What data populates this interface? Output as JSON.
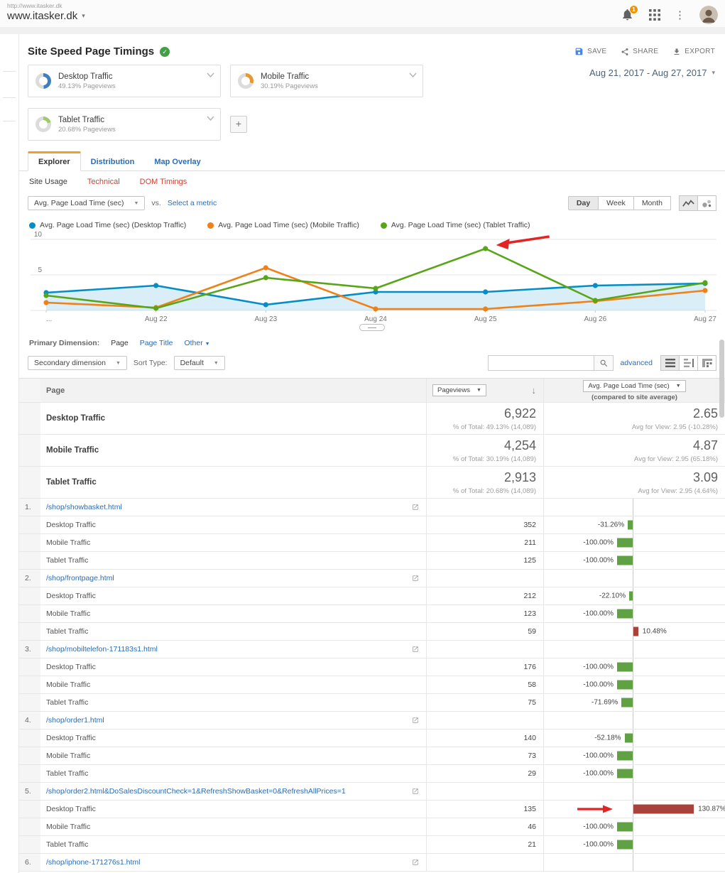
{
  "topbar": {
    "url": "http://www.itasker.dk",
    "site": "www.itasker.dk",
    "notification_count": "1"
  },
  "header": {
    "title": "Site Speed Page Timings",
    "save": "SAVE",
    "share": "SHARE",
    "export": "EXPORT"
  },
  "date_range": "Aug 21, 2017 - Aug 27, 2017",
  "segments": [
    {
      "name": "Desktop Traffic",
      "detail": "49.13% Pageviews",
      "pct": 49.13,
      "color": "#3e7fc1"
    },
    {
      "name": "Mobile Traffic",
      "detail": "30.19% Pageviews",
      "pct": 30.19,
      "color": "#e8962e"
    },
    {
      "name": "Tablet Traffic",
      "detail": "20.68% Pageviews",
      "pct": 20.68,
      "color": "#9ccb6a"
    }
  ],
  "tabs": [
    {
      "label": "Explorer"
    },
    {
      "label": "Distribution"
    },
    {
      "label": "Map Overlay"
    }
  ],
  "subtabs": [
    {
      "label": "Site Usage"
    },
    {
      "label": "Technical"
    },
    {
      "label": "DOM Timings"
    }
  ],
  "metric_bar": {
    "metric_select": "Avg. Page Load Time (sec)",
    "vs_label": "vs.",
    "select_metric": "Select a metric",
    "granularity": [
      "Day",
      "Week",
      "Month"
    ],
    "active_granularity": "Day"
  },
  "chart_data": {
    "type": "line",
    "x_labels": [
      "...",
      "Aug 22",
      "Aug 23",
      "Aug 24",
      "Aug 25",
      "Aug 26",
      "Aug 27"
    ],
    "ylim": [
      0,
      10
    ],
    "yticks": [
      5,
      10
    ],
    "grid": true,
    "legend_position": "top",
    "series": [
      {
        "name": "Avg. Page Load Time (sec) (Desktop Traffic)",
        "color": "#058dc7",
        "area": true,
        "values": [
          2.5,
          3.5,
          0.8,
          2.6,
          2.6,
          3.5,
          3.8
        ]
      },
      {
        "name": "Avg. Page Load Time (sec) (Mobile Traffic)",
        "color": "#ef8119",
        "area": false,
        "values": [
          1.1,
          0.4,
          6.0,
          0.2,
          0.2,
          1.3,
          2.8
        ]
      },
      {
        "name": "Avg. Page Load Time (sec) (Tablet Traffic)",
        "color": "#58a618",
        "area": false,
        "values": [
          2.1,
          0.3,
          4.6,
          3.1,
          8.7,
          1.4,
          3.9
        ]
      }
    ],
    "arrow_annotation": {
      "series": 2,
      "index": 4
    }
  },
  "primary_dimension": {
    "label": "Primary Dimension:",
    "active": "Page",
    "links": [
      "Page Title",
      "Other"
    ]
  },
  "toolbar": {
    "secondary_dimension": "Secondary dimension",
    "sort_type_label": "Sort Type:",
    "sort_type_value": "Default",
    "advanced_label": "advanced"
  },
  "table": {
    "col_page": "Page",
    "col_pageviews": "Pageviews",
    "col_metric": "Avg. Page Load Time (sec)",
    "col_metric_sub": "(compared to site average)",
    "summary": [
      {
        "label": "Desktop Traffic",
        "pageviews": "6,922",
        "pageviews_note": "% of Total: 49.13% (14,089)",
        "metric": "2.65",
        "metric_note": "Avg for View: 2.95 (-10.28%)"
      },
      {
        "label": "Mobile Traffic",
        "pageviews": "4,254",
        "pageviews_note": "% of Total: 30.19% (14,089)",
        "metric": "4.87",
        "metric_note": "Avg for View: 2.95 (65.18%)"
      },
      {
        "label": "Tablet Traffic",
        "pageviews": "2,913",
        "pageviews_note": "% of Total: 20.68% (14,089)",
        "metric": "3.09",
        "metric_note": "Avg for View: 2.95 (4.64%)"
      }
    ],
    "rows": [
      {
        "num": "1.",
        "url": "/shop/showbasket.html",
        "entries": [
          {
            "label": "Desktop Traffic",
            "pageviews": "352",
            "pct": -31.26,
            "pct_label": "-31.26%"
          },
          {
            "label": "Mobile Traffic",
            "pageviews": "211",
            "pct": -100.0,
            "pct_label": "-100.00%"
          },
          {
            "label": "Tablet Traffic",
            "pageviews": "125",
            "pct": -100.0,
            "pct_label": "-100.00%"
          }
        ]
      },
      {
        "num": "2.",
        "url": "/shop/frontpage.html",
        "entries": [
          {
            "label": "Desktop Traffic",
            "pageviews": "212",
            "pct": -22.1,
            "pct_label": "-22.10%"
          },
          {
            "label": "Mobile Traffic",
            "pageviews": "123",
            "pct": -100.0,
            "pct_label": "-100.00%"
          },
          {
            "label": "Tablet Traffic",
            "pageviews": "59",
            "pct": 10.48,
            "pct_label": "10.48%"
          }
        ]
      },
      {
        "num": "3.",
        "url": "/shop/mobiltelefon-171183s1.html",
        "entries": [
          {
            "label": "Desktop Traffic",
            "pageviews": "176",
            "pct": -100.0,
            "pct_label": "-100.00%"
          },
          {
            "label": "Mobile Traffic",
            "pageviews": "58",
            "pct": -100.0,
            "pct_label": "-100.00%"
          },
          {
            "label": "Tablet Traffic",
            "pageviews": "75",
            "pct": -71.69,
            "pct_label": "-71.69%"
          }
        ]
      },
      {
        "num": "4.",
        "url": "/shop/order1.html",
        "entries": [
          {
            "label": "Desktop Traffic",
            "pageviews": "140",
            "pct": -52.18,
            "pct_label": "-52.18%"
          },
          {
            "label": "Mobile Traffic",
            "pageviews": "73",
            "pct": -100.0,
            "pct_label": "-100.00%"
          },
          {
            "label": "Tablet Traffic",
            "pageviews": "29",
            "pct": -100.0,
            "pct_label": "-100.00%"
          }
        ]
      },
      {
        "num": "5.",
        "url": "/shop/order2.html&DoSalesDiscountCheck=1&RefreshShowBasket=0&RefreshAllPrices=1",
        "entries": [
          {
            "label": "Desktop Traffic",
            "pageviews": "135",
            "pct": 130.87,
            "pct_label": "130.87%",
            "arrow": true
          },
          {
            "label": "Mobile Traffic",
            "pageviews": "46",
            "pct": -100.0,
            "pct_label": "-100.00%"
          },
          {
            "label": "Tablet Traffic",
            "pageviews": "21",
            "pct": -100.0,
            "pct_label": "-100.00%"
          }
        ]
      },
      {
        "num": "6.",
        "url": "/shop/iphone-171276s1.html",
        "entries": []
      }
    ]
  }
}
